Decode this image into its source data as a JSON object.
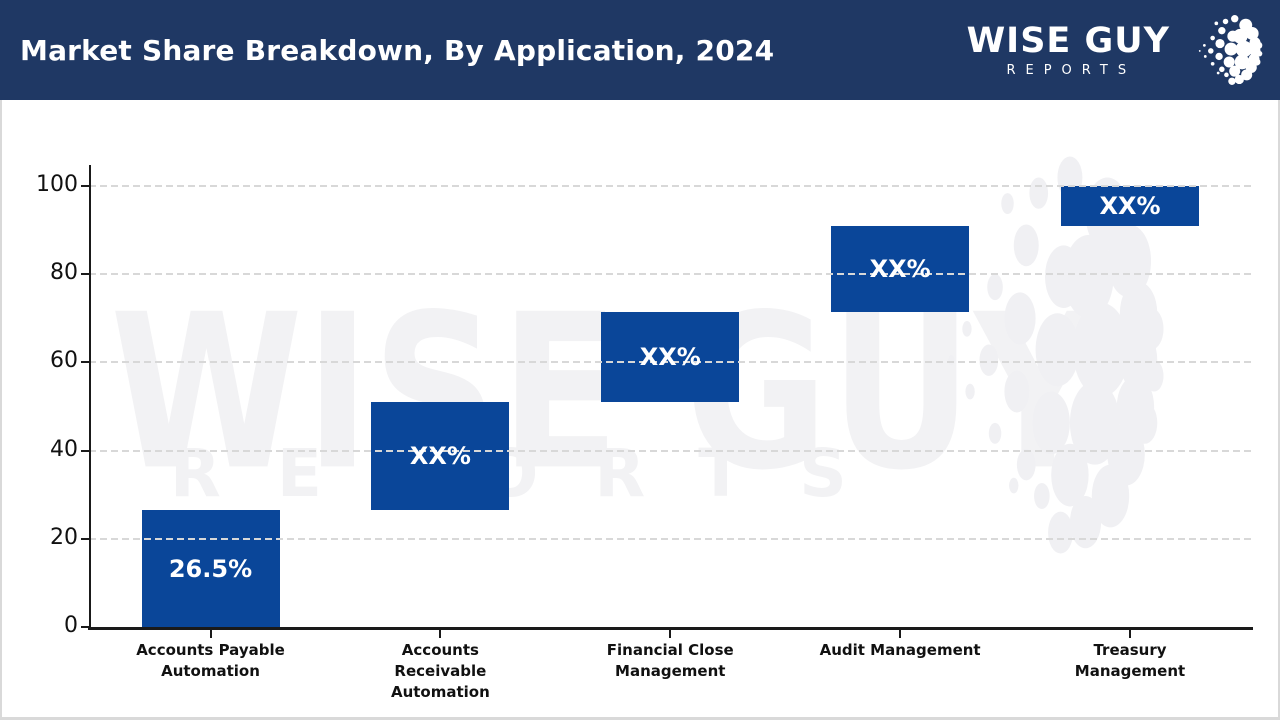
{
  "header": {
    "title": "Market Share Breakdown, By Application, 2024",
    "brand": {
      "name_top": "WISE GUY",
      "name_bottom": "REPORTS"
    }
  },
  "watermark": {
    "text_top": "WISE GUY",
    "text_bottom": "REPORTS"
  },
  "colors": {
    "header_bg": "#1f3864",
    "bar": "#0a4699",
    "grid": "#d8d8d8",
    "axis": "#1a1a1a",
    "title_text": "#ffffff",
    "bar_label_text": "#ffffff"
  },
  "chart_data": {
    "type": "bar",
    "subtype": "waterfall",
    "title": "Market Share Breakdown, By Application, 2024",
    "categories": [
      "Accounts Payable\nAutomation",
      "Accounts\nReceivable\nAutomation",
      "Financial Close\nManagement",
      "Audit Management",
      "Treasury\nManagement"
    ],
    "segments": [
      {
        "label": "26.5%",
        "start": 0,
        "end": 26.5
      },
      {
        "label": "XX%",
        "start": 26.5,
        "end": 51
      },
      {
        "label": "XX%",
        "start": 51,
        "end": 71.5
      },
      {
        "label": "XX%",
        "start": 71.5,
        "end": 91
      },
      {
        "label": "XX%",
        "start": 91,
        "end": 100
      }
    ],
    "ylim": [
      0,
      100
    ],
    "yticks": [
      0,
      20,
      40,
      60,
      80,
      100
    ],
    "grid": "horizontal-dashed",
    "legend": "none",
    "xlabel": "",
    "ylabel": ""
  }
}
